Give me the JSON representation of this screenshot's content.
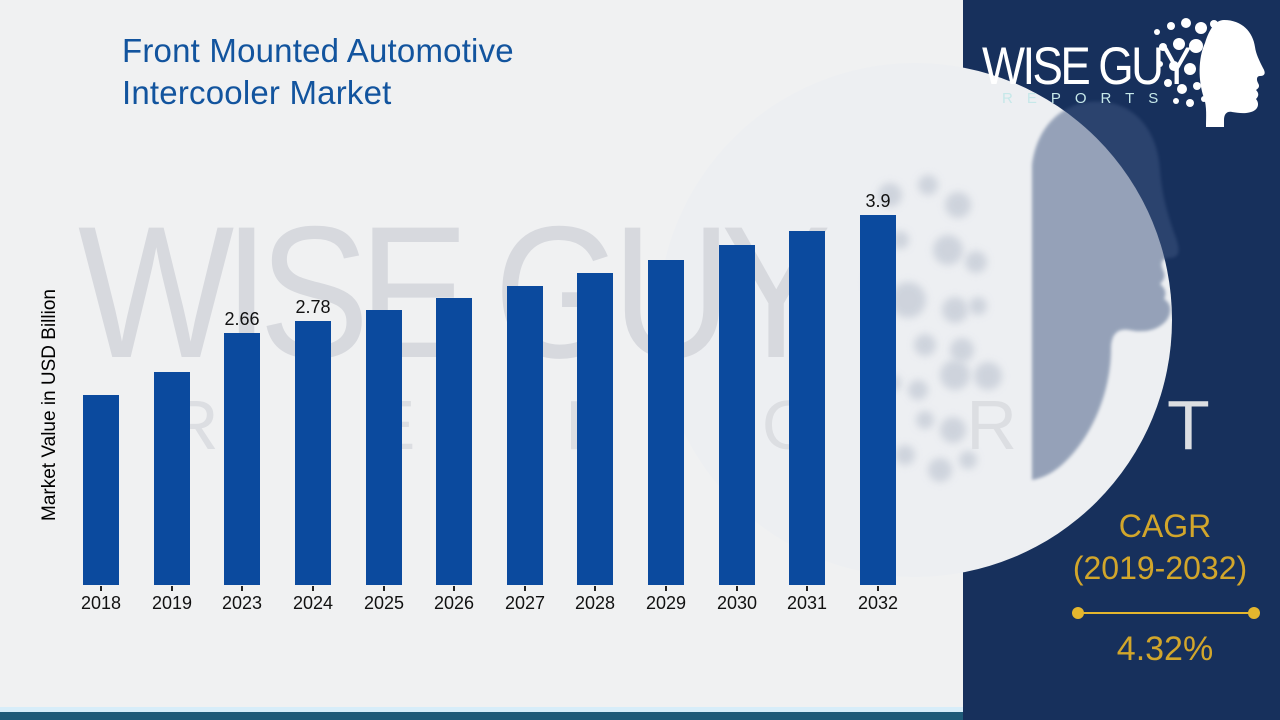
{
  "title": {
    "line1": "Front Mounted Automotive",
    "line2": "Intercooler Market"
  },
  "y_axis_label": "Market Value in USD Billion",
  "chart_data": {
    "type": "bar",
    "categories": [
      "2018",
      "2019",
      "2023",
      "2024",
      "2025",
      "2026",
      "2027",
      "2028",
      "2029",
      "2030",
      "2031",
      "2032"
    ],
    "values": [
      2.0,
      2.25,
      2.66,
      2.78,
      2.9,
      3.02,
      3.15,
      3.29,
      3.43,
      3.58,
      3.73,
      3.9
    ],
    "data_labels": [
      "",
      "",
      "2.66",
      "2.78",
      "",
      "",
      "",
      "",
      "",
      "",
      "",
      "3.9"
    ],
    "title": "",
    "xlabel": "",
    "ylabel": "Market Value in USD Billion",
    "ylim": [
      0,
      4.1
    ],
    "grid": false,
    "legend": false,
    "bar_color": "#0b4a9e"
  },
  "watermark": {
    "line1": "WISE GUY",
    "line2": "REPORTS"
  },
  "logo": {
    "wordmark": "WISE GUY",
    "subtext": "REPORTS"
  },
  "cagr": {
    "label": "CAGR",
    "period": "(2019-2032)",
    "value": "4.32%"
  },
  "colors": {
    "background": "#f0f1f2",
    "bar": "#0b4a9e",
    "title_blue": "#12549e",
    "panel_navy": "#17305c",
    "gold_accent": "#d2a62b",
    "teal_accent": "#1e5a78",
    "watermark_gray": "#d7d9de"
  }
}
